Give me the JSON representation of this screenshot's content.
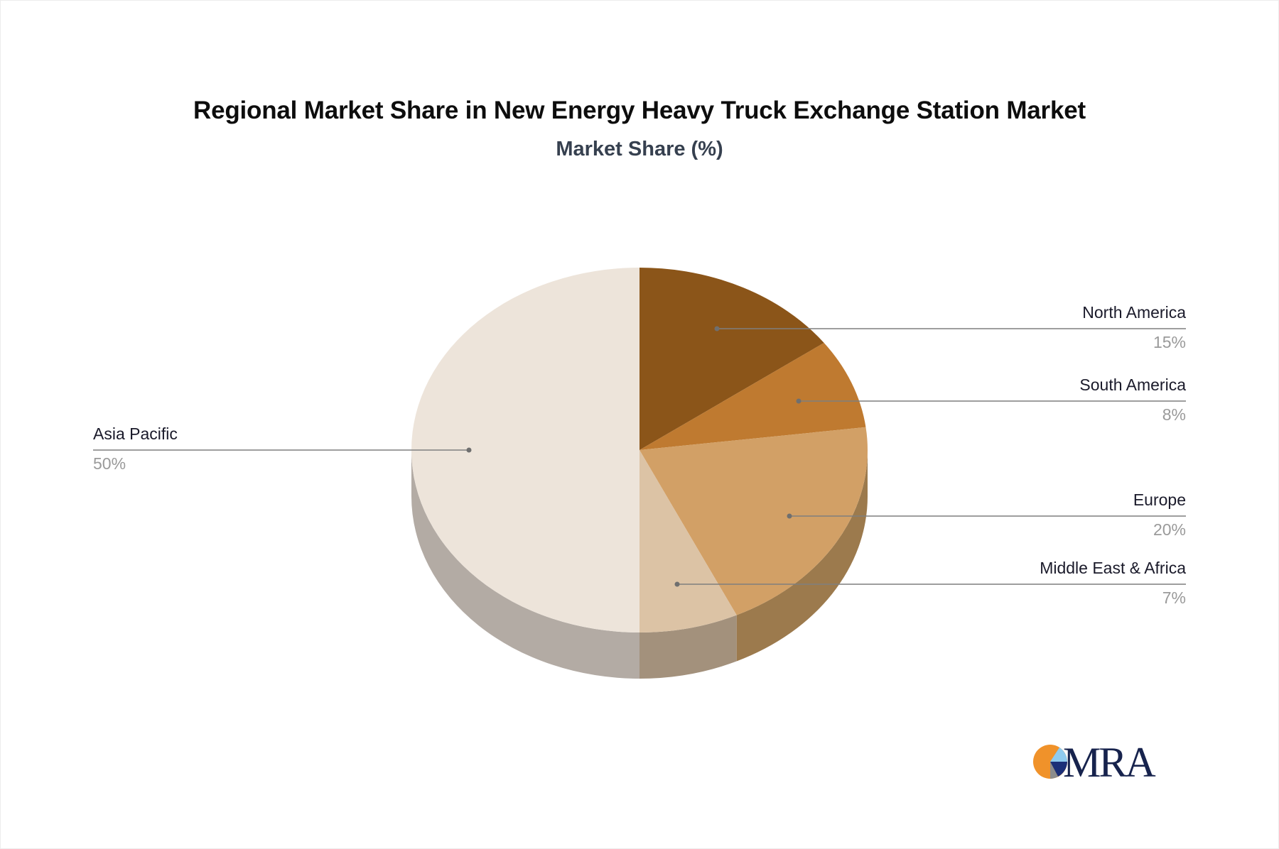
{
  "header": {
    "title": "Regional Market Share in New Energy Heavy Truck Exchange Station Market",
    "subtitle": "Market Share (%)"
  },
  "chart_data": {
    "type": "pie",
    "title": "Regional Market Share in New Energy Heavy Truck Exchange Station Market",
    "subtitle": "Market Share (%)",
    "style": "3d",
    "categories": [
      "North America",
      "South America",
      "Europe",
      "Middle East & Africa",
      "Asia Pacific"
    ],
    "values": [
      15,
      8,
      20,
      7,
      50
    ],
    "unit": "%",
    "colors": [
      "#8b5519",
      "#bf7a30",
      "#d2a066",
      "#dcc3a5",
      "#ede4da"
    ],
    "side_colors": [
      "#6e4514",
      "#9a6428",
      "#9c7a4d",
      "#a3917c",
      "#b3aba4"
    ],
    "slices": [
      {
        "label": "North America",
        "value": 15,
        "display": "15%"
      },
      {
        "label": "South America",
        "value": 8,
        "display": "8%"
      },
      {
        "label": "Europe",
        "value": 20,
        "display": "20%"
      },
      {
        "label": "Middle East & Africa",
        "value": 7,
        "display": "7%"
      },
      {
        "label": "Asia Pacific",
        "value": 50,
        "display": "50%"
      }
    ],
    "legend": "none (callout labels)"
  },
  "labels": {
    "north_america": {
      "name": "North America",
      "pct": "15%"
    },
    "south_america": {
      "name": "South America",
      "pct": "8%"
    },
    "europe": {
      "name": "Europe",
      "pct": "20%"
    },
    "mea": {
      "name": "Middle East & Africa",
      "pct": "7%"
    },
    "asia_pacific": {
      "name": "Asia Pacific",
      "pct": "50%"
    }
  },
  "logo": {
    "text": "MRA",
    "colors": {
      "orange": "#f0922a",
      "light_blue": "#8fcbef",
      "navy": "#1b2f78",
      "gray": "#8c8c8c",
      "text": "#17234d"
    }
  }
}
